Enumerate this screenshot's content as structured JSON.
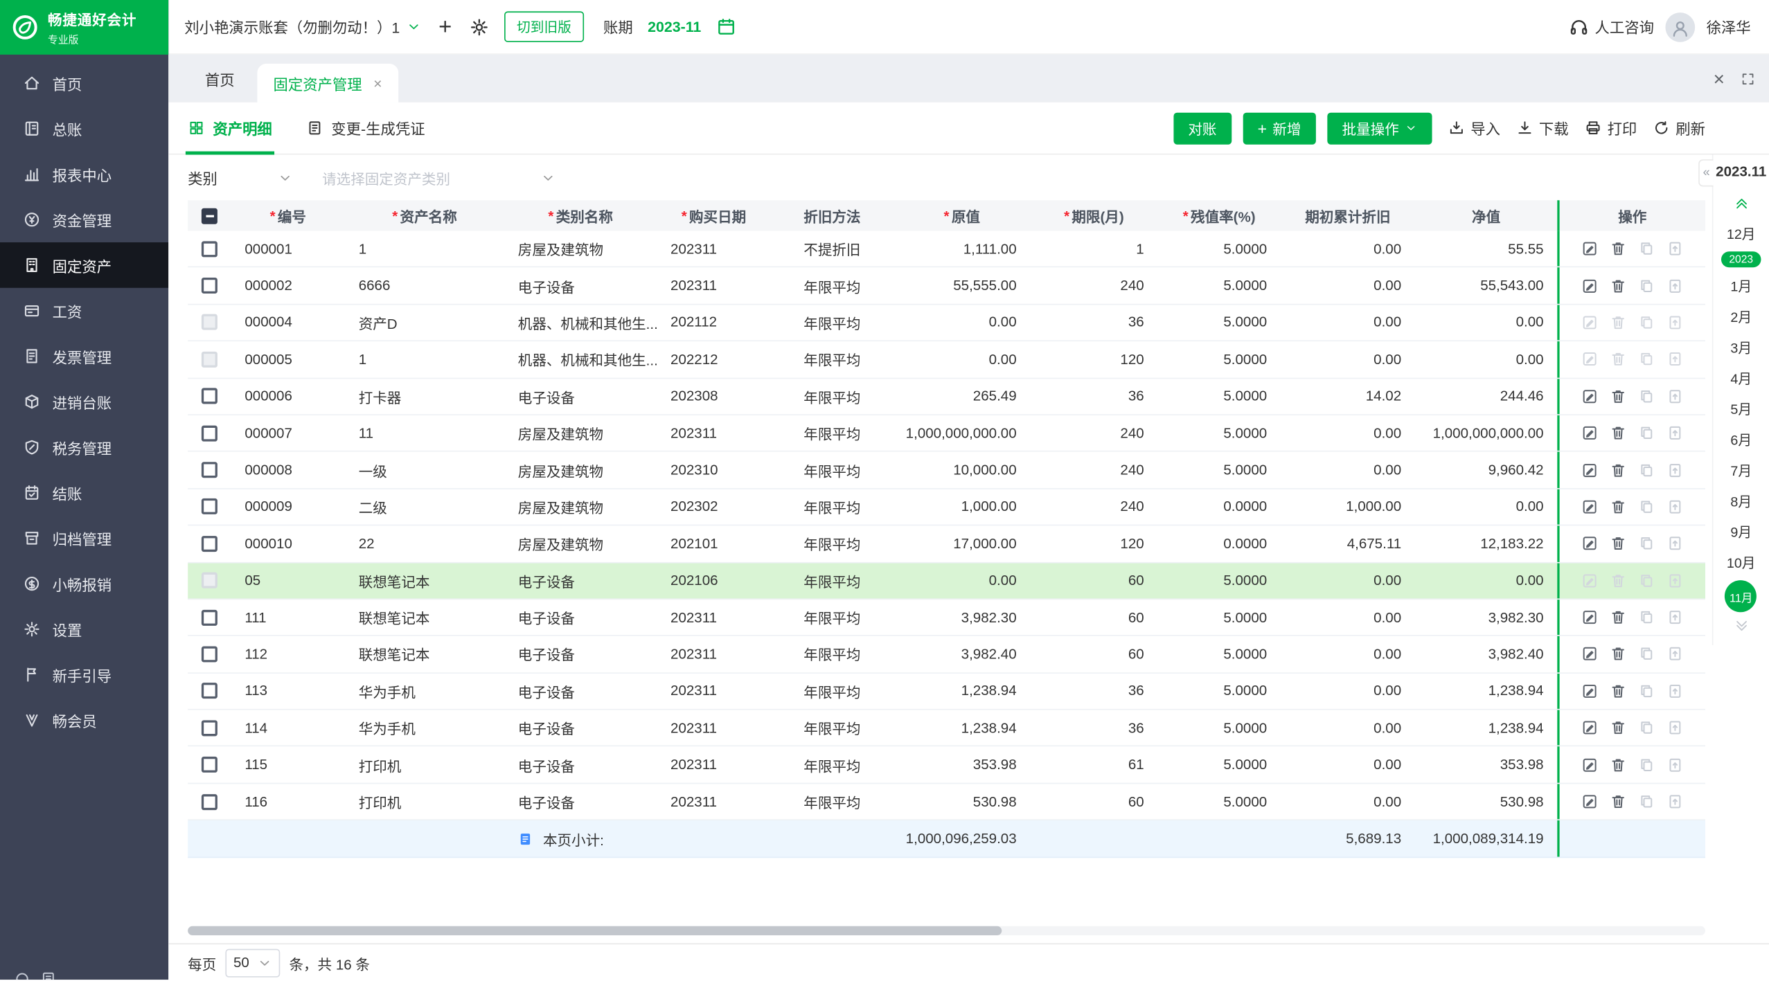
{
  "brand": {
    "title": "畅捷通好会计",
    "subtitle": "专业版"
  },
  "icons": {
    "plus": "+",
    "tab_close": "×",
    "page_close": "×",
    "collapse": "«"
  },
  "topbar": {
    "account_set": "刘小艳演示账套（勿删勿动！）1",
    "switch_old": "切到旧版",
    "period_label": "账期",
    "period_value": "2023-11",
    "support_label": "人工咨询",
    "user_name": "徐泽华"
  },
  "tabstrip": {
    "home_tab": "首页",
    "active_tab": "固定资产管理"
  },
  "sidebar": {
    "items": [
      {
        "label": "首页",
        "icon": "home"
      },
      {
        "label": "总账",
        "icon": "ledger"
      },
      {
        "label": "报表中心",
        "icon": "report"
      },
      {
        "label": "资金管理",
        "icon": "fund"
      },
      {
        "label": "固定资产",
        "icon": "asset",
        "active": true
      },
      {
        "label": "工资",
        "icon": "salary"
      },
      {
        "label": "发票管理",
        "icon": "invoice"
      },
      {
        "label": "进销台账",
        "icon": "inventory"
      },
      {
        "label": "税务管理",
        "icon": "tax"
      },
      {
        "label": "结账",
        "icon": "closing"
      },
      {
        "label": "归档管理",
        "icon": "archive"
      },
      {
        "label": "小畅报销",
        "icon": "reimburse"
      },
      {
        "label": "设置",
        "icon": "settings"
      },
      {
        "label": "新手引导",
        "icon": "guide"
      },
      {
        "label": "畅会员",
        "icon": "member"
      }
    ]
  },
  "toolbar": {
    "detail_tab": "资产明细",
    "change_tab": "变更-生成凭证",
    "reconcile_btn": "对账",
    "add_btn": "新增",
    "batch_btn": "批量操作",
    "import_btn": "导入",
    "download_btn": "下载",
    "print_btn": "打印",
    "refresh_btn": "刷新"
  },
  "filter": {
    "category_label": "类别",
    "category_placeholder": "请选择固定资产类别"
  },
  "table": {
    "headers": [
      {
        "label": "编号",
        "required": true
      },
      {
        "label": "资产名称",
        "required": true
      },
      {
        "label": "类别名称",
        "required": true
      },
      {
        "label": "购买日期",
        "required": true
      },
      {
        "label": "折旧方法",
        "required": false
      },
      {
        "label": "原值",
        "required": true
      },
      {
        "label": "期限(月)",
        "required": true
      },
      {
        "label": "残值率(%)",
        "required": true
      },
      {
        "label": "期初累计折旧",
        "required": false
      },
      {
        "label": "净值",
        "required": false
      },
      {
        "label": "操作",
        "required": false
      }
    ],
    "rows": [
      {
        "code": "000001",
        "name": "1",
        "category": "房屋及建筑物",
        "date": "202311",
        "method": "不提折旧",
        "original": "1,111.00",
        "months": "1",
        "residual": "5.0000",
        "accum": "0.00",
        "net": "55.55",
        "state": "normal"
      },
      {
        "code": "000002",
        "name": "6666",
        "category": "电子设备",
        "date": "202311",
        "method": "年限平均",
        "original": "55,555.00",
        "months": "240",
        "residual": "5.0000",
        "accum": "0.00",
        "net": "55,543.00",
        "state": "normal"
      },
      {
        "code": "000004",
        "name": "资产D",
        "category": "机器、机械和其他生...",
        "date": "202112",
        "method": "年限平均",
        "original": "0.00",
        "months": "36",
        "residual": "5.0000",
        "accum": "0.00",
        "net": "0.00",
        "state": "disabled"
      },
      {
        "code": "000005",
        "name": "1",
        "category": "机器、机械和其他生...",
        "date": "202212",
        "method": "年限平均",
        "original": "0.00",
        "months": "120",
        "residual": "5.0000",
        "accum": "0.00",
        "net": "0.00",
        "state": "disabled"
      },
      {
        "code": "000006",
        "name": "打卡器",
        "category": "电子设备",
        "date": "202308",
        "method": "年限平均",
        "original": "265.49",
        "months": "36",
        "residual": "5.0000",
        "accum": "14.02",
        "net": "244.46",
        "state": "normal"
      },
      {
        "code": "000007",
        "name": "11",
        "category": "房屋及建筑物",
        "date": "202311",
        "method": "年限平均",
        "original": "1,000,000,000.00",
        "months": "240",
        "residual": "5.0000",
        "accum": "0.00",
        "net": "1,000,000,000.00",
        "state": "normal"
      },
      {
        "code": "000008",
        "name": "一级",
        "category": "房屋及建筑物",
        "date": "202310",
        "method": "年限平均",
        "original": "10,000.00",
        "months": "240",
        "residual": "5.0000",
        "accum": "0.00",
        "net": "9,960.42",
        "state": "normal"
      },
      {
        "code": "000009",
        "name": "二级",
        "category": "房屋及建筑物",
        "date": "202302",
        "method": "年限平均",
        "original": "1,000.00",
        "months": "240",
        "residual": "0.0000",
        "accum": "1,000.00",
        "net": "0.00",
        "state": "normal"
      },
      {
        "code": "000010",
        "name": "22",
        "category": "房屋及建筑物",
        "date": "202101",
        "method": "年限平均",
        "original": "17,000.00",
        "months": "120",
        "residual": "0.0000",
        "accum": "4,675.11",
        "net": "12,183.22",
        "state": "normal"
      },
      {
        "code": "05",
        "name": "联想笔记本",
        "category": "电子设备",
        "date": "202106",
        "method": "年限平均",
        "original": "0.00",
        "months": "60",
        "residual": "5.0000",
        "accum": "0.00",
        "net": "0.00",
        "state": "highlight"
      },
      {
        "code": "111",
        "name": "联想笔记本",
        "category": "电子设备",
        "date": "202311",
        "method": "年限平均",
        "original": "3,982.30",
        "months": "60",
        "residual": "5.0000",
        "accum": "0.00",
        "net": "3,982.30",
        "state": "normal"
      },
      {
        "code": "112",
        "name": "联想笔记本",
        "category": "电子设备",
        "date": "202311",
        "method": "年限平均",
        "original": "3,982.40",
        "months": "60",
        "residual": "5.0000",
        "accum": "0.00",
        "net": "3,982.40",
        "state": "normal"
      },
      {
        "code": "113",
        "name": "华为手机",
        "category": "电子设备",
        "date": "202311",
        "method": "年限平均",
        "original": "1,238.94",
        "months": "36",
        "residual": "5.0000",
        "accum": "0.00",
        "net": "1,238.94",
        "state": "normal"
      },
      {
        "code": "114",
        "name": "华为手机",
        "category": "电子设备",
        "date": "202311",
        "method": "年限平均",
        "original": "1,238.94",
        "months": "36",
        "residual": "5.0000",
        "accum": "0.00",
        "net": "1,238.94",
        "state": "normal"
      },
      {
        "code": "115",
        "name": "打印机",
        "category": "电子设备",
        "date": "202311",
        "method": "年限平均",
        "original": "353.98",
        "months": "61",
        "residual": "5.0000",
        "accum": "0.00",
        "net": "353.98",
        "state": "normal"
      },
      {
        "code": "116",
        "name": "打印机",
        "category": "电子设备",
        "date": "202311",
        "method": "年限平均",
        "original": "530.98",
        "months": "60",
        "residual": "5.0000",
        "accum": "0.00",
        "net": "530.98",
        "state": "normal"
      }
    ],
    "summary": {
      "label": "本页小计:",
      "original": "1,000,096,259.03",
      "accum": "5,689.13",
      "net": "1,000,089,314.19"
    }
  },
  "pagination": {
    "per_page_label": "每页",
    "per_page_value": "50",
    "total_label": "条，共 16 条"
  },
  "calendar": {
    "title": "2023.11",
    "year_badge": "2023",
    "months": [
      "12月",
      "1月",
      "2月",
      "3月",
      "4月",
      "5月",
      "6月",
      "7月",
      "8月",
      "9月",
      "10月",
      "11月"
    ],
    "active_month": "11月"
  },
  "colors": {
    "primary_green": "#00b14c",
    "sidebar_dark": "#3d4356",
    "highlight_row_green": "#d9f4d4",
    "summary_row_blue": "#edf6fe",
    "required_red": "#f5222d"
  }
}
